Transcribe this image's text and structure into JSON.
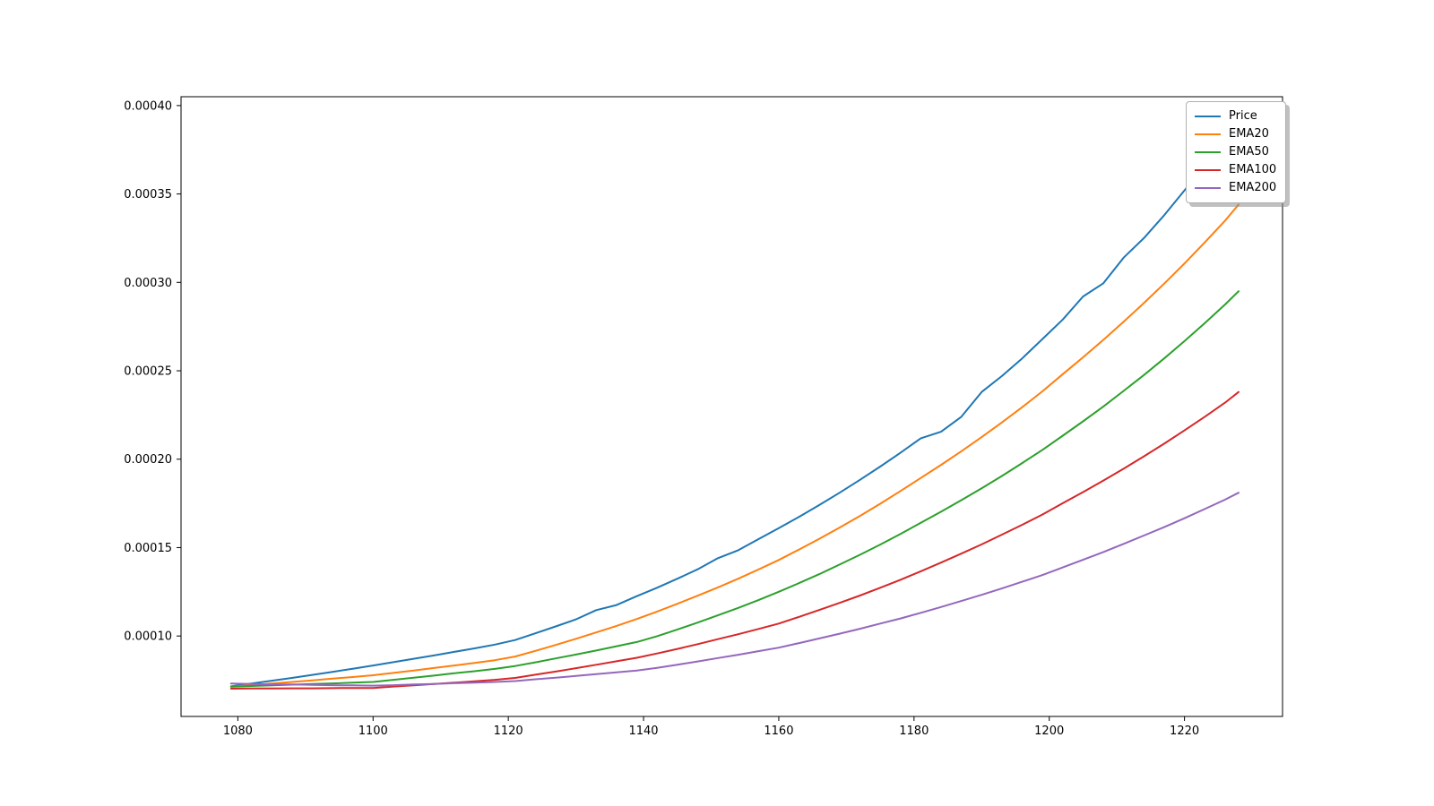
{
  "figure": {
    "background_color": "#ffffff",
    "axes_edge_color": "#000000",
    "tick_color": "#000000"
  },
  "chart_data": {
    "type": "line",
    "title": "",
    "xlabel": "",
    "ylabel": "",
    "grid": false,
    "legend_position": "upper-right",
    "xlim": [
      1071.6,
      1234.5
    ],
    "ylim": [
      5.45e-05,
      0.000405
    ],
    "x_tick_values": [
      1080,
      1100,
      1120,
      1140,
      1160,
      1180,
      1200,
      1220
    ],
    "x_tick_labels": [
      "1080",
      "1100",
      "1120",
      "1140",
      "1160",
      "1180",
      "1200",
      "1220"
    ],
    "y_tick_values": [
      0.0001,
      0.00015,
      0.0002,
      0.00025,
      0.0003,
      0.00035,
      0.0004
    ],
    "y_tick_labels": [
      "0.00010",
      "0.00015",
      "0.00020",
      "0.00025",
      "0.00030",
      "0.00035",
      "0.00040"
    ],
    "x": [
      1079,
      1082,
      1085,
      1088,
      1091,
      1094,
      1097,
      1100,
      1103,
      1106,
      1109,
      1112,
      1115,
      1118,
      1121,
      1124,
      1127,
      1130,
      1133,
      1136,
      1139,
      1142,
      1145,
      1148,
      1151,
      1154,
      1157,
      1160,
      1163,
      1166,
      1169,
      1172,
      1175,
      1178,
      1181,
      1184,
      1187,
      1190,
      1193,
      1196,
      1199,
      1202,
      1205,
      1208,
      1211,
      1214,
      1217,
      1220,
      1223,
      1226,
      1228
    ],
    "series": [
      {
        "name": "Price",
        "color": "#1f77b4",
        "values": [
          7.15e-05,
          7.31e-05,
          7.47e-05,
          7.63e-05,
          7.8e-05,
          7.97e-05,
          8.15e-05,
          8.33e-05,
          8.52e-05,
          8.71e-05,
          8.9e-05,
          9.1e-05,
          9.3e-05,
          9.51e-05,
          9.77e-05,
          0.0001015,
          0.0001054,
          0.0001094,
          0.0001146,
          0.0001175,
          0.0001225,
          0.0001273,
          0.0001324,
          0.0001377,
          0.000144,
          0.0001485,
          0.0001548,
          0.000161,
          0.0001674,
          0.0001741,
          0.000181,
          0.0001883,
          0.0001958,
          0.0002036,
          0.0002118,
          0.0002155,
          0.000224,
          0.000238,
          0.000247,
          0.000257,
          0.000268,
          0.000279,
          0.000292,
          0.0002995,
          0.000314,
          0.000325,
          0.000338,
          0.000352,
          0.000366,
          0.00038,
          0.000389
        ]
      },
      {
        "name": "EMA20",
        "color": "#ff7f0e",
        "values": [
          7.13e-05,
          7.22e-05,
          7.31e-05,
          7.4e-05,
          7.49e-05,
          7.59e-05,
          7.68e-05,
          7.78e-05,
          7.91e-05,
          8.05e-05,
          8.19e-05,
          8.33e-05,
          8.48e-05,
          8.63e-05,
          8.84e-05,
          9.16e-05,
          9.49e-05,
          9.84e-05,
          0.000102,
          0.0001057,
          0.0001096,
          0.0001138,
          0.0001182,
          0.0001228,
          0.0001275,
          0.0001324,
          0.0001376,
          0.000143,
          0.0001489,
          0.000155,
          0.0001613,
          0.0001679,
          0.0001748,
          0.000182,
          0.0001894,
          0.0001968,
          0.0002045,
          0.0002125,
          0.0002208,
          0.0002294,
          0.0002384,
          0.0002481,
          0.0002576,
          0.0002675,
          0.0002777,
          0.0002883,
          0.0002993,
          0.0003107,
          0.0003226,
          0.0003349,
          0.000344
        ]
      },
      {
        "name": "EMA50",
        "color": "#2ca02c",
        "values": [
          7.13e-05,
          7.17e-05,
          7.21e-05,
          7.25e-05,
          7.29e-05,
          7.32e-05,
          7.36e-05,
          7.4e-05,
          7.52e-05,
          7.64e-05,
          7.76e-05,
          7.89e-05,
          8.01e-05,
          8.14e-05,
          8.3e-05,
          8.51e-05,
          8.73e-05,
          8.95e-05,
          9.18e-05,
          9.42e-05,
          9.66e-05,
          9.99e-05,
          0.0001037,
          0.0001076,
          0.0001117,
          0.0001159,
          0.0001203,
          0.000125,
          0.0001299,
          0.000135,
          0.0001404,
          0.0001459,
          0.0001517,
          0.0001577,
          0.000164,
          0.0001703,
          0.0001768,
          0.0001835,
          0.0001905,
          0.0001978,
          0.0002053,
          0.0002133,
          0.0002214,
          0.0002298,
          0.0002386,
          0.0002476,
          0.000257,
          0.0002668,
          0.0002769,
          0.0002875,
          0.000295
        ]
      },
      {
        "name": "EMA100",
        "color": "#d62728",
        "values": [
          7.02e-05,
          7.03e-05,
          7.03e-05,
          7.04e-05,
          7.04e-05,
          7.05e-05,
          7.06e-05,
          7.06e-05,
          7.14e-05,
          7.21e-05,
          7.29e-05,
          7.36e-05,
          7.44e-05,
          7.52e-05,
          7.63e-05,
          7.81e-05,
          7.99e-05,
          8.18e-05,
          8.37e-05,
          8.57e-05,
          8.77e-05,
          9.01e-05,
          9.27e-05,
          9.54e-05,
          9.82e-05,
          0.000101,
          0.000104,
          0.000107,
          0.0001108,
          0.0001147,
          0.0001187,
          0.0001229,
          0.0001273,
          0.0001318,
          0.0001366,
          0.0001415,
          0.0001466,
          0.0001518,
          0.0001573,
          0.0001629,
          0.0001687,
          0.0001751,
          0.0001814,
          0.0001879,
          0.0001946,
          0.0002016,
          0.0002088,
          0.0002163,
          0.000224,
          0.000232,
          0.000238
        ]
      },
      {
        "name": "EMA200",
        "color": "#9467bd",
        "values": [
          7.31e-05,
          7.29e-05,
          7.27e-05,
          7.26e-05,
          7.24e-05,
          7.22e-05,
          7.21e-05,
          7.19e-05,
          7.22e-05,
          7.26e-05,
          7.29e-05,
          7.33e-05,
          7.36e-05,
          7.4e-05,
          7.45e-05,
          7.55e-05,
          7.64e-05,
          7.74e-05,
          7.84e-05,
          7.94e-05,
          8.05e-05,
          8.2e-05,
          8.38e-05,
          8.56e-05,
          8.75e-05,
          8.94e-05,
          9.14e-05,
          9.34e-05,
          9.6e-05,
          9.86e-05,
          0.0001013,
          0.0001041,
          0.000107,
          0.0001099,
          0.0001131,
          0.0001164,
          0.0001198,
          0.0001233,
          0.0001269,
          0.0001307,
          0.0001345,
          0.0001388,
          0.0001431,
          0.0001475,
          0.0001521,
          0.0001568,
          0.0001616,
          0.0001666,
          0.0001718,
          0.0001771,
          0.000181
        ]
      }
    ]
  }
}
